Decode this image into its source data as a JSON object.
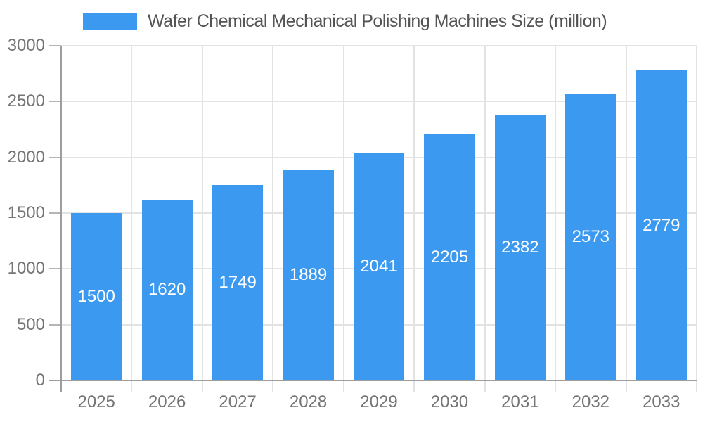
{
  "chart_data": {
    "type": "bar",
    "title": "Wafer Chemical Mechanical Polishing Machines Size (million)",
    "legend_entries": [
      "Wafer Chemical Mechanical Polishing Machines Size (million)"
    ],
    "legend_position": "top-left",
    "categories": [
      "2025",
      "2026",
      "2027",
      "2028",
      "2029",
      "2030",
      "2031",
      "2032",
      "2033"
    ],
    "values": [
      1500,
      1620,
      1749,
      1889,
      2041,
      2205,
      2382,
      2573,
      2779
    ],
    "value_labels": [
      "1500",
      "1620",
      "1749",
      "1889",
      "2041",
      "2205",
      "2382",
      "2573",
      "2779"
    ],
    "value_label_position": "inside-center",
    "xlabel": "",
    "ylabel": "",
    "ylim": [
      0,
      3000
    ],
    "ytick_step": 500,
    "yticks": [
      0,
      500,
      1000,
      1500,
      2000,
      2500,
      3000
    ],
    "grid": true,
    "bar_color": "#3B99F0",
    "value_label_color": "#ffffff",
    "axis_label_color": "#757575",
    "legend_text_color": "#545454"
  }
}
